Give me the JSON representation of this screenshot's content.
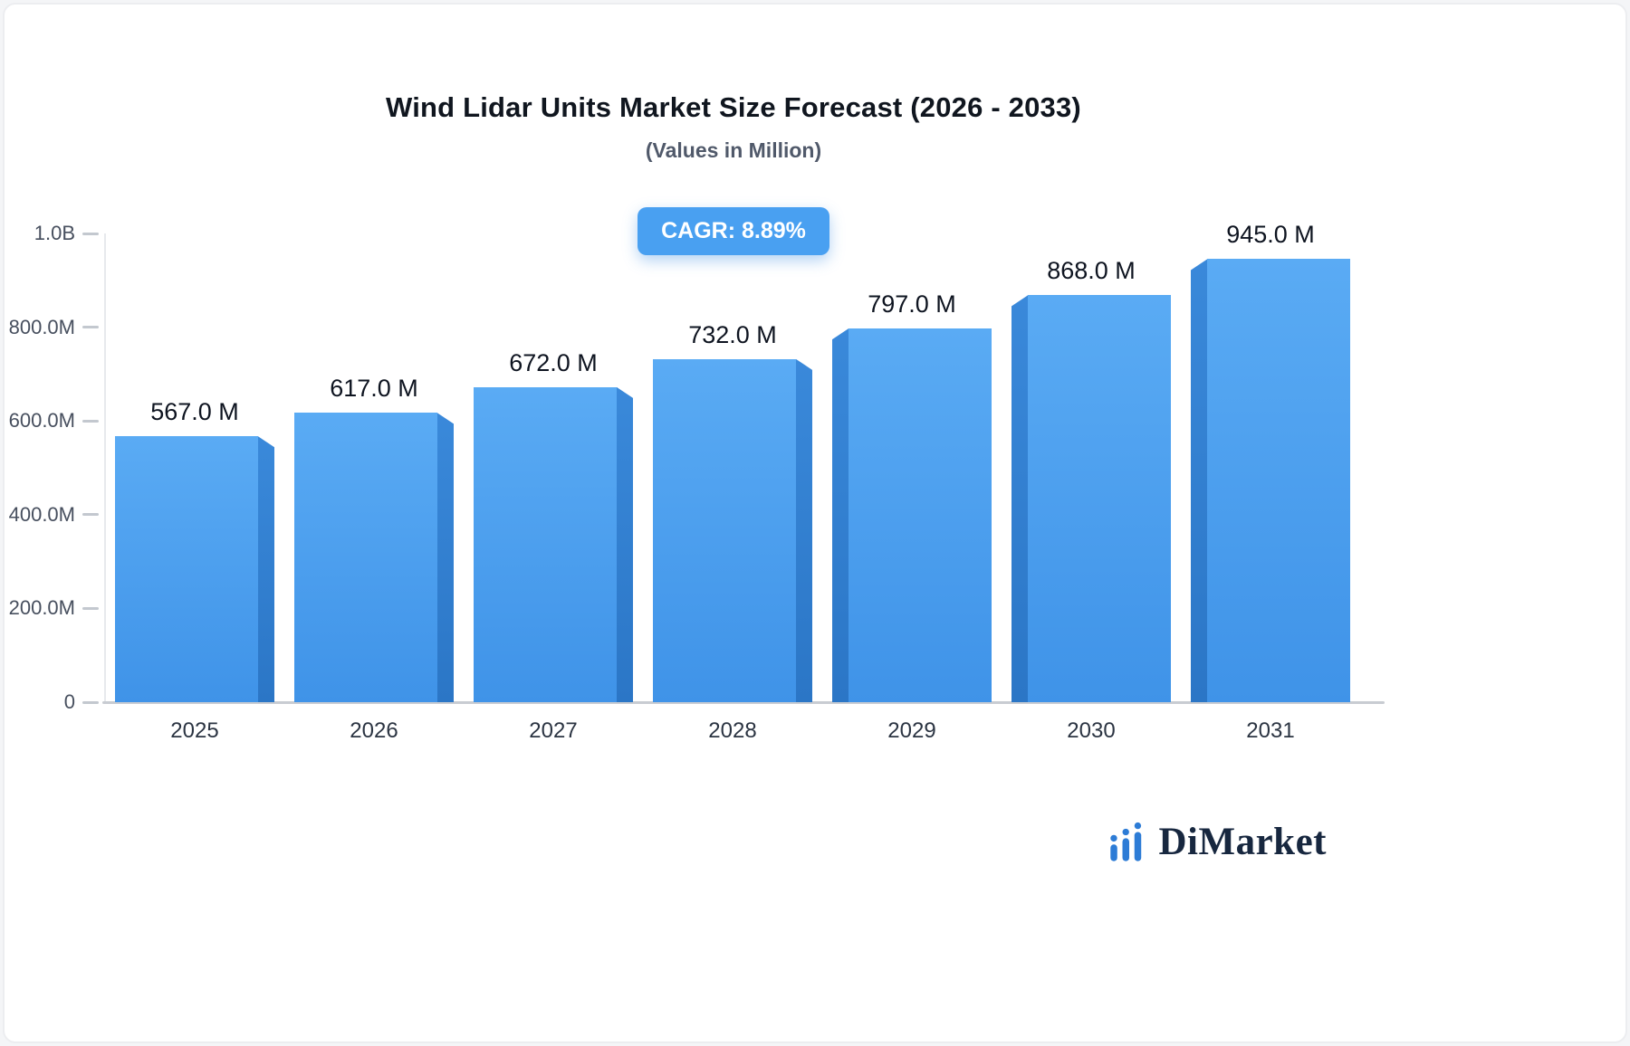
{
  "header": {
    "title": "Wind Lidar Units Market Size Forecast (2026 - 2033)",
    "subtitle": "(Values in Million)"
  },
  "badge": {
    "label": "CAGR: 8.89%",
    "color": "#49a0f1"
  },
  "chart_data": {
    "type": "bar",
    "title": "Wind Lidar Units Market Size Forecast (2026 - 2033)",
    "subtitle": "(Values in Million)",
    "unit": "Million",
    "categories": [
      "2025",
      "2026",
      "2027",
      "2028",
      "2029",
      "2030",
      "2031"
    ],
    "values": [
      567,
      617,
      672,
      732,
      797,
      868,
      945
    ],
    "value_labels": [
      "567.0 M",
      "617.0 M",
      "672.0 M",
      "732.0 M",
      "797.0 M",
      "868.0 M",
      "945.0 M"
    ],
    "xlabel": "",
    "ylabel": "",
    "ylim": [
      0,
      1000
    ],
    "y_ticks": [
      {
        "value": 0,
        "label": "0"
      },
      {
        "value": 200,
        "label": "200.0M"
      },
      {
        "value": 400,
        "label": "400.0M"
      },
      {
        "value": 600,
        "label": "600.0M"
      },
      {
        "value": 800,
        "label": "800.0M"
      },
      {
        "value": 1000,
        "label": "1.0B"
      }
    ],
    "grid": false,
    "legend": "none",
    "bar_face_color_top": "#5aabf4",
    "bar_face_color_bottom": "#3f93e8",
    "bar_side_color": "#2b76c6"
  },
  "logo": {
    "text": "DiMarket",
    "icon_color": "#2d7cd6"
  }
}
